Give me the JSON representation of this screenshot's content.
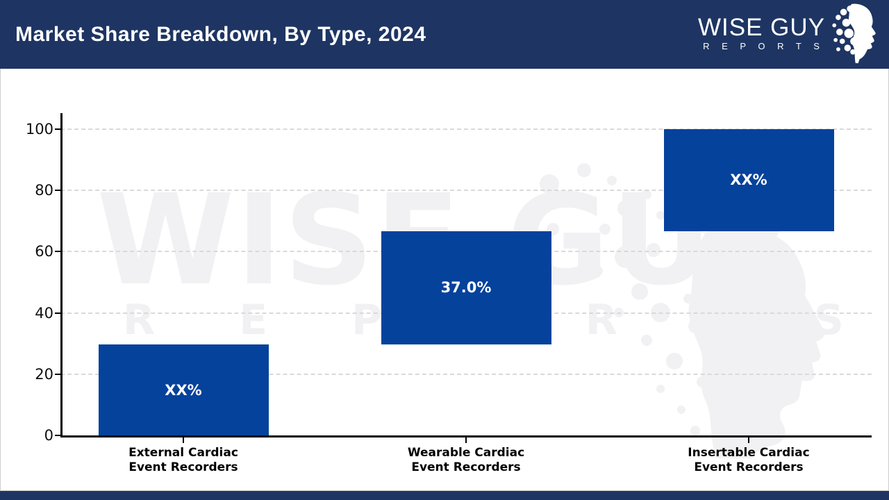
{
  "header": {
    "title": "Market Share Breakdown, By Type, 2024",
    "logo": {
      "name": "WISE GUY",
      "subtitle": "R E P O R T S"
    }
  },
  "watermark": {
    "line1": "WISE GUY",
    "line2": "R E P O R T S"
  },
  "colors": {
    "header_bg": "#1e3563",
    "bar": "#05429c",
    "grid": "#d9d9d9",
    "watermark": "#f1f1f3",
    "value_label": "#ffffff"
  },
  "chart_data": {
    "type": "bar",
    "subtype": "stacked-waterfall",
    "title": "Market Share Breakdown, By Type, 2024",
    "categories": [
      {
        "line1": "External Cardiac",
        "line2": "Event Recorders"
      },
      {
        "line1": "Wearable Cardiac",
        "line2": "Event Recorders"
      },
      {
        "line1": "Insertable Cardiac",
        "line2": "Event Recorders"
      }
    ],
    "segments": [
      {
        "label": "XX%",
        "start": 0,
        "end": 29.7,
        "value": 29.7
      },
      {
        "label": "37.0%",
        "start": 29.7,
        "end": 66.7,
        "value": 37.0
      },
      {
        "label": "XX%",
        "start": 66.7,
        "end": 100,
        "value": 33.3
      }
    ],
    "ylim": [
      0,
      100
    ],
    "yticks": [
      0,
      20,
      40,
      60,
      80,
      100
    ],
    "grid": {
      "axis": "y",
      "style": "dashed"
    },
    "legend": "none",
    "bar_color": "#05429c",
    "value_label_color": "#ffffff"
  }
}
